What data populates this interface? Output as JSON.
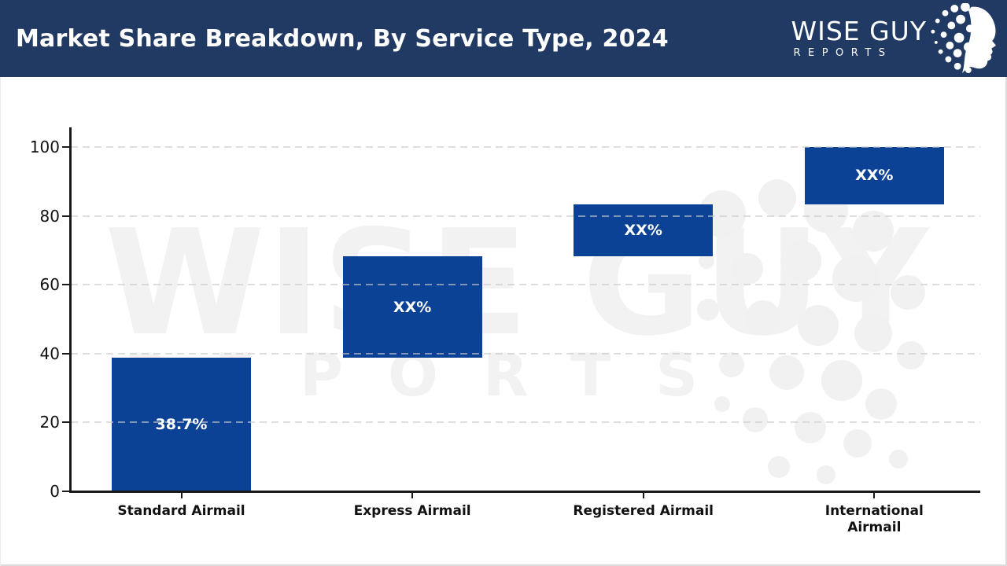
{
  "header": {
    "title": "Market Share Breakdown, By Service Type, 2024",
    "bg_color": "#213a64",
    "logo": {
      "line1": "WISE GUY",
      "line2": "REPORTS"
    }
  },
  "watermark": {
    "line1": "WISE GUY",
    "line2": "REPORTS"
  },
  "chart_data": {
    "type": "bar",
    "subtype": "floating-waterfall",
    "title": "Market Share Breakdown, By Service Type, 2024",
    "categories": [
      "Standard Airmail",
      "Express Airmail",
      "Registered Airmail",
      "International\nAirmail"
    ],
    "segments": [
      {
        "category": "Standard Airmail",
        "start": 0,
        "end": 38.7,
        "label": "38.7%"
      },
      {
        "category": "Express Airmail",
        "start": 38.7,
        "end": 68.2,
        "label": "XX%"
      },
      {
        "category": "Registered Airmail",
        "start": 68.2,
        "end": 83.3,
        "label": "XX%"
      },
      {
        "category": "International Airmail",
        "start": 83.4,
        "end": 100,
        "label": "XX%"
      }
    ],
    "xlabel": "",
    "ylabel": "",
    "ylim": [
      0,
      100
    ],
    "yticks": [
      0,
      20,
      40,
      60,
      80,
      100
    ],
    "grid": "horizontal-dashed",
    "legend": "none",
    "bar_color": "#0b4295",
    "bar_label_color": "#ffffff",
    "axis_color": "#1a1a1a"
  }
}
